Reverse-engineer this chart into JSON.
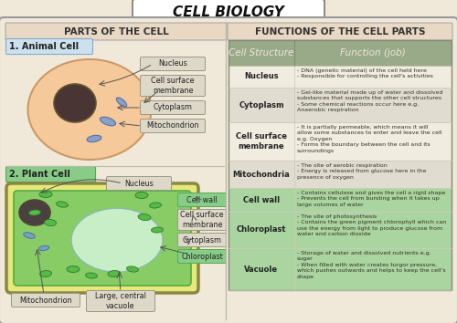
{
  "title": "CELL BIOLOGY",
  "left_header": "PARTS OF THE CELL",
  "right_header": "FUNCTIONS OF THE CELL PARTS",
  "bg_color": "#f0e8d8",
  "header_bg": "#e8d8c4",
  "animal_label": "1. Animal Cell",
  "plant_label": "2. Plant Cell",
  "animal_label_bg": "#cce0ee",
  "plant_label_bg": "#88cc88",
  "table_headers": [
    "Cell Structure",
    "Function (job)"
  ],
  "table_rows": [
    [
      "Nucleus",
      "- DNA (genetic material) of the cell held here\n- Responsible for controlling the cell's activities"
    ],
    [
      "Cytoplasm",
      "- Gel-like material made up of water and dissolved\nsubstances that supports the other cell structures\n- Some chemical reactions occur here e.g.\nAnaerobic respiration"
    ],
    [
      "Cell surface\nmembrane",
      "- It is partially permeable, which means it will\nallow some substances to enter and leave the cell\ne.g. Oxygen\n- Forms the boundary between the cell and its\nsurroundings"
    ],
    [
      "Mitochondria",
      "- The site of aerobic respiration\n- Energy is released from glucose here in the\npresence of oxygen"
    ],
    [
      "Cell wall",
      "- Contains cellulose and gives the cell a rigid shape\n- Prevents the cell from bursting when it takes up\nlarge volumes of water"
    ],
    [
      "Chloroplast",
      "- The site of photosynthesis\n- Contains the green pigment chlorophyll which can\nuse the energy from light to produce glucose from\nwater and carbon dioxide"
    ],
    [
      "Vacuole",
      "- Storage of water and dissolved nutrients e.g.\nsugar\n- When filled with water creates turgor pressure,\nwhich pushes outwards and helps to keep the cell's\nshape"
    ]
  ],
  "plant_row_indices": [
    4,
    5,
    6
  ],
  "animal_cell_color": "#f5c99a",
  "nucleus_color": "#4a3535",
  "mitochondria_color": "#7799cc",
  "plant_cell_outer_color": "#e8e87a",
  "plant_cell_border_color": "#888844",
  "plant_cell_inner_color": "#88cc66",
  "plant_vacuole_color": "#c8eec8",
  "plant_nucleus_color": "#4a4040",
  "chloroplast_color": "#55bb44",
  "label_box_color": "#ddd8c8",
  "plant_label_box_color": "#88cc88",
  "table_header_bg": "#99aa88",
  "table_row_bg_light": "#f0ece0",
  "table_row_bg_dark": "#e0ddd0",
  "plant_row_bg": "#aad4a0",
  "border_color": "#aaaaaa",
  "divider_color": "#bbbbaa",
  "title_font_size": 11,
  "header_font_size": 7,
  "label_font_size": 6
}
